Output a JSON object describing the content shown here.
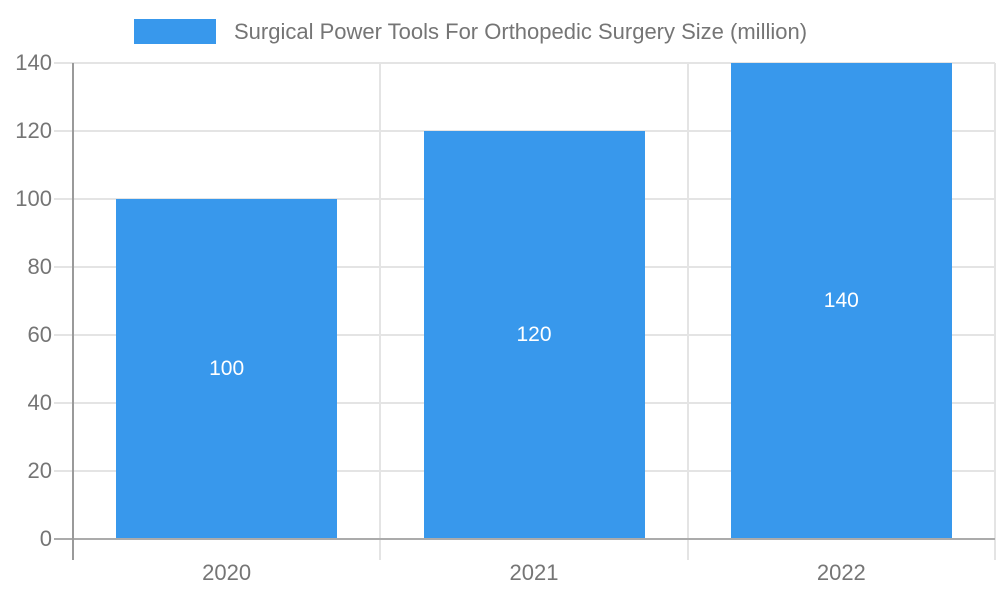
{
  "legend": {
    "swatch_icon": "series-color-swatch",
    "label": "Surgical Power Tools For Orthopedic Surgery Size (million)"
  },
  "colors": {
    "bar": "#3898ec",
    "grid": "#e4e4e4",
    "axis": "#9a9a9a",
    "baseline": "#ababab",
    "text": "#757575",
    "bar_label": "#ffffff",
    "background": "#ffffff"
  },
  "chart_data": {
    "type": "bar",
    "title": "Surgical Power Tools For Orthopedic Surgery Size (million)",
    "categories": [
      "2020",
      "2021",
      "2022"
    ],
    "values": [
      100,
      120,
      140
    ],
    "data_labels": [
      "100",
      "120",
      "140"
    ],
    "xlabel": "",
    "ylabel": "",
    "ylim": [
      0,
      140
    ],
    "ytick_step": 20,
    "ytick_labels": [
      "0",
      "20",
      "40",
      "60",
      "80",
      "100",
      "120",
      "140"
    ],
    "grid": true,
    "legend_position": "top"
  }
}
